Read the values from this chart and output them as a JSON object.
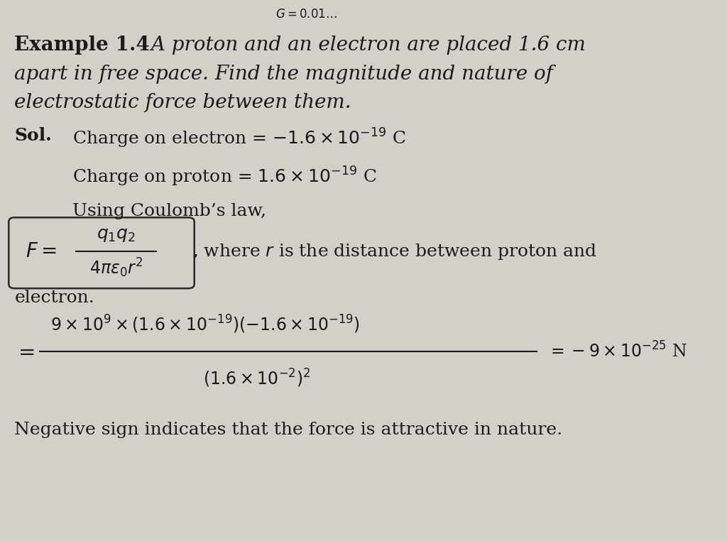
{
  "background_color": "#d4cfc9",
  "text_color": "#1a1a1a",
  "box_edge_color": "#2a2a2a",
  "figsize": [
    10.24,
    7.62
  ],
  "dpi": 100,
  "title_example": "Example 1.4",
  "title_problem": " A proton and an electron are placed 1.6 cm\napart in free space. Find the magnitude and nature of\nelectrostatic force between them.",
  "sol_label": "Sol.",
  "charge_electron": "Charge on electron = $-1.6 \\times 10^{-19}$ C",
  "charge_proton": "Charge on proton = $1.6 \\times 10^{-19}$ C",
  "coulombs_law": "Using Coulomb’s law,",
  "formula_F": "$F =$",
  "formula_num": "$q_1q_2$",
  "formula_den": "$4\\pi\\varepsilon_0 r^2$",
  "formula_tail": ", where $r$ is the distance between proton and",
  "electron_word": "electron.",
  "calc_eq": "$=$",
  "calc_num": "$9\\times10^9\\times(1.6\\times10^{-19})(-1.6\\times10^{-19})$",
  "calc_den": "$(1.6\\times10^{-2})^2$",
  "calc_result": "$= -9\\times10^{-25}$ N",
  "conclusion": "Negative sign indicates that the force is attractive in nature.",
  "fs_title": 20,
  "fs_body": 18,
  "fs_math": 17
}
